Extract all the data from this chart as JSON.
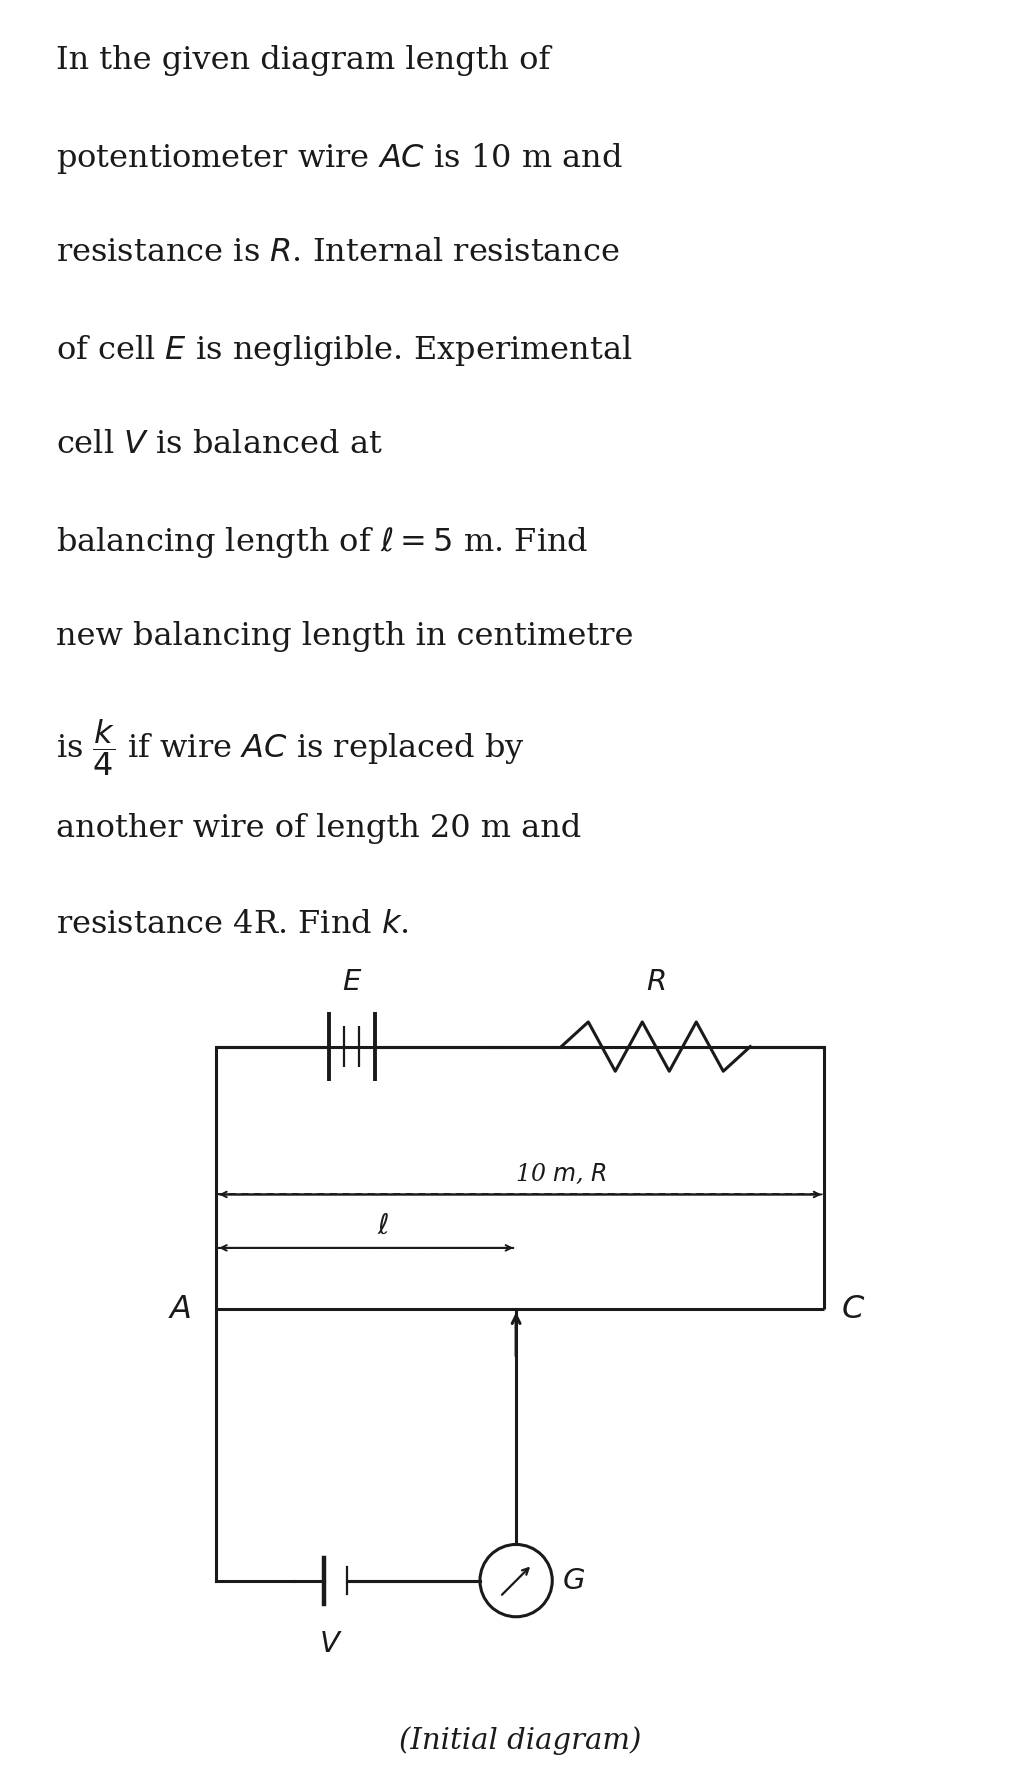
{
  "bg_color": "#ffffff",
  "text_color": "#1a1a1a",
  "fig_width": 10.24,
  "fig_height": 17.86,
  "lines": [
    "In the given diagram length of",
    "potentiometer wire $\\mathit{AC}$ is 10 m and",
    "resistance is $\\mathit{R}$. Internal resistance",
    "of cell $\\mathit{E}$ is negligible. Experimental",
    "cell $\\mathit{V}$ is balanced at",
    "balancing length of $\\ell = 5$ m. Find",
    "new balancing length in centimetre",
    "is $\\dfrac{k}{4}$ if wire $\\mathit{AC}$ is replaced by",
    "another wire of length 20 m and",
    "resistance 4R. Find $k$."
  ],
  "caption": "(Initial diagram)"
}
